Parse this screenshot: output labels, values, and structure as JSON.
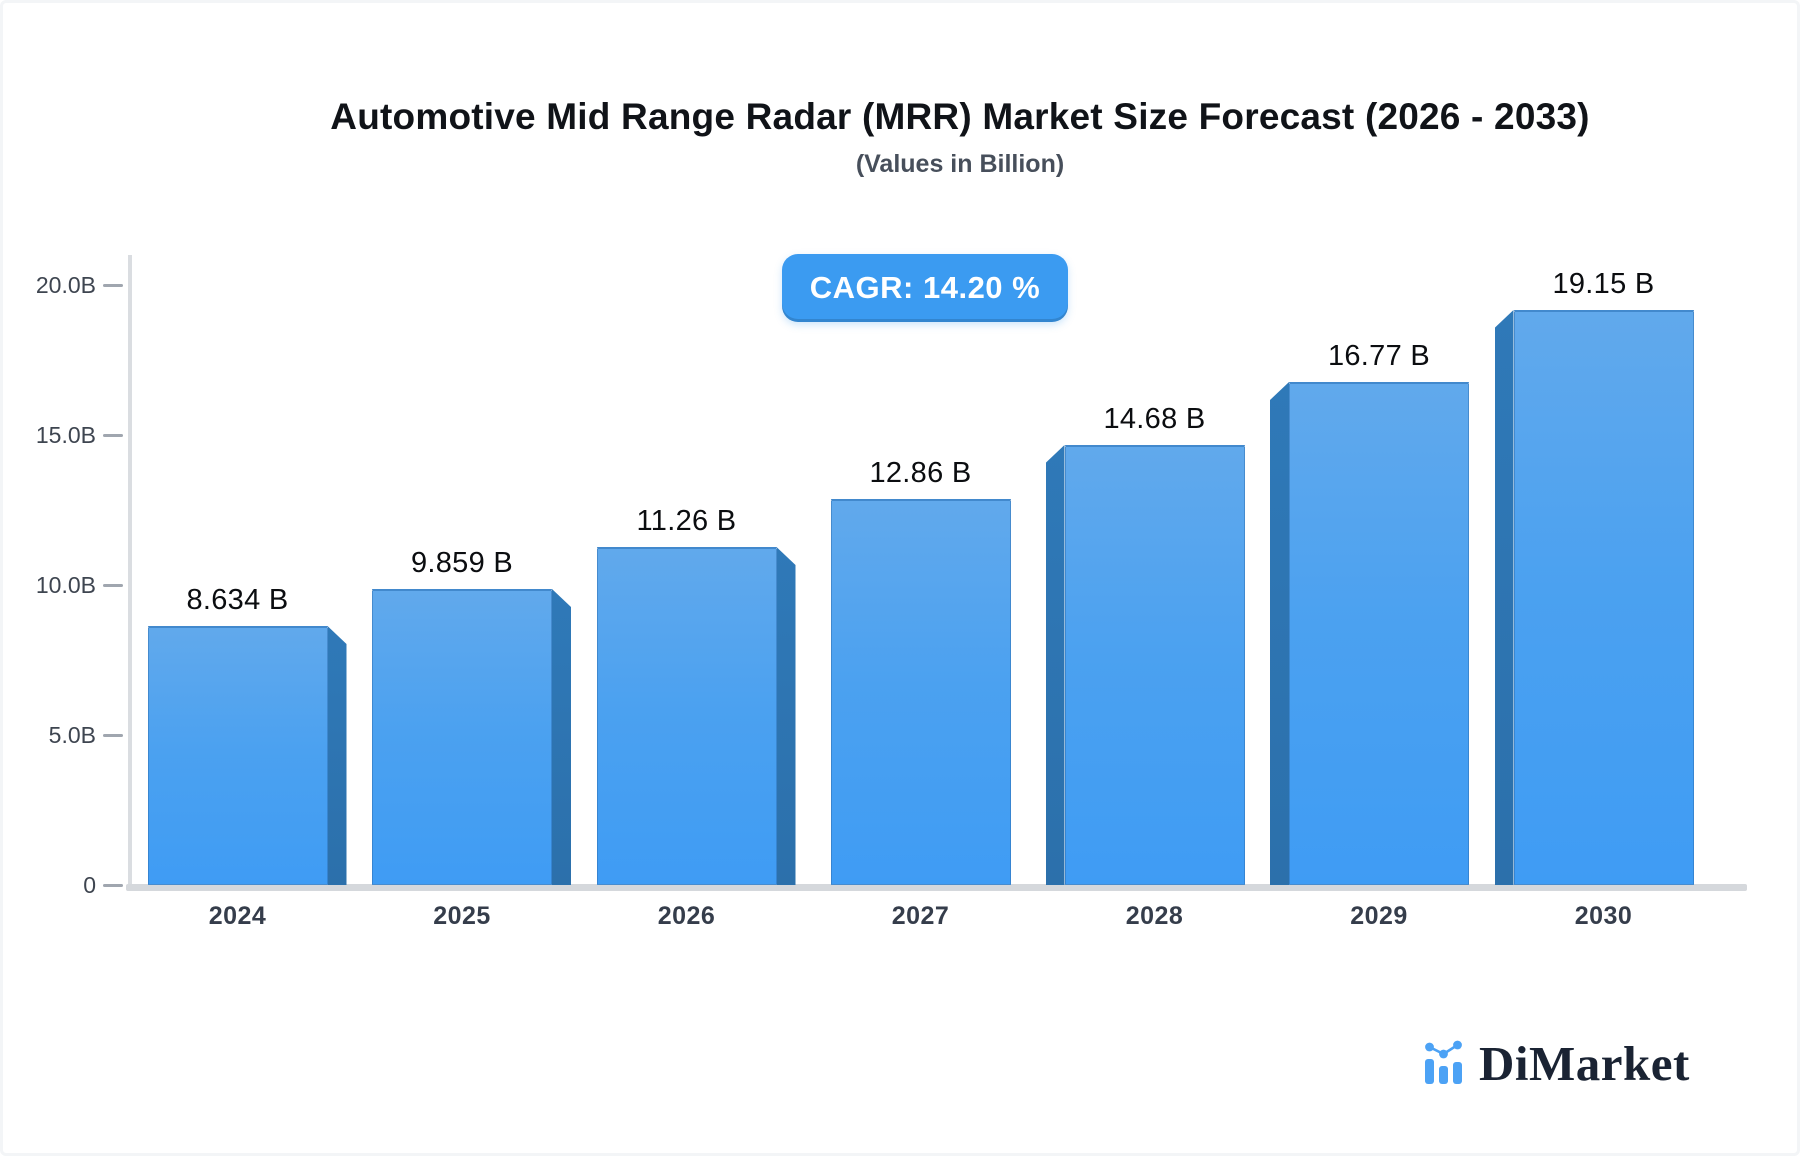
{
  "header": {
    "title": "Automotive Mid Range Radar (MRR) Market Size Forecast (2026 - 2033)",
    "subtitle": "(Values in Billion)"
  },
  "badge": {
    "label": "CAGR: 14.20 %"
  },
  "chart_data": {
    "type": "bar",
    "title": "Automotive Mid Range Radar (MRR) Market Size Forecast (2026 - 2033)",
    "subtitle": "(Values in Billion)",
    "unit": "Billion USD",
    "cagr": "14.20%",
    "categories": [
      "2024",
      "2025",
      "2026",
      "2027",
      "2028",
      "2029",
      "2030"
    ],
    "values": [
      8.634,
      9.859,
      11.26,
      12.86,
      14.68,
      16.77,
      19.15
    ],
    "value_labels": [
      "8.634 B",
      "9.859 B",
      "11.26 B",
      "12.86 B",
      "14.68 B",
      "16.77 B",
      "19.15 B"
    ],
    "xlabel": "",
    "ylabel": "",
    "ylim": [
      0,
      20
    ],
    "grid": false,
    "y_ticks": [
      {
        "label": "20.0B",
        "value": 20
      },
      {
        "label": "15.0B",
        "value": 15
      },
      {
        "label": "10.0B",
        "value": 10
      },
      {
        "label": "5.0B",
        "value": 5
      },
      {
        "label": "0",
        "value": 0
      }
    ]
  },
  "branding": {
    "logo_text": "DiMarket",
    "logo_icon": "bar-chart-trend-icon"
  },
  "colors": {
    "bar_face_top": "#61a9ec",
    "bar_face_bottom": "#3f9cf4",
    "bar_side": "#2d74b1",
    "badge_bg": "#3b9bf1",
    "axis_line": "#d5d8dc",
    "logo_blue": "#4ca2f5",
    "logo_navy": "#1a2333"
  }
}
